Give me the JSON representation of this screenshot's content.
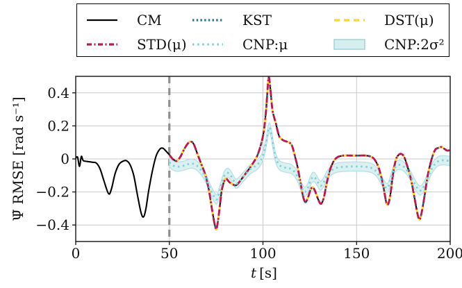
{
  "colors": {
    "cm": "#000000",
    "std": "#bf1550",
    "kst": "#27798f",
    "cnp": "#7fd2d8",
    "dst": "#ffd42e",
    "band_fill": "#d7eef0",
    "band_edge": "#b2e0e5",
    "vline": "#8f8f8f",
    "grid": "#c9c9c9",
    "axis": "#111111"
  },
  "axes": {
    "xlabel_var": "t",
    "xlabel_unit": "[s]",
    "ylabel": "Ψ̇ RMSE [rad s⁻¹]"
  },
  "legend": {
    "items": [
      {
        "label": "CM",
        "marker": "solid-line",
        "color": "#000000"
      },
      {
        "label": "KST",
        "marker": "dense-dots",
        "color": "#27798f"
      },
      {
        "label": "DST(μ)",
        "marker": "dashes",
        "color": "#ffd42e"
      },
      {
        "label": "STD(μ)",
        "marker": "dash-dot",
        "color": "#bf1550"
      },
      {
        "label": "CNP:μ",
        "marker": "dots",
        "color": "#7fd2d8"
      },
      {
        "label": "CNP:2σ²",
        "marker": "patch",
        "color": "#d7eef0",
        "border": "#9fd3d8"
      }
    ]
  },
  "chart_data": {
    "type": "line",
    "title": "",
    "xlabel": "t [s]",
    "ylabel": "Ψ̇ RMSE [rad s⁻¹]",
    "xlim": [
      0,
      200
    ],
    "ylim": [
      -0.5,
      0.5
    ],
    "xticks": [
      0,
      50,
      100,
      150,
      200
    ],
    "yticks": [
      0.4,
      0.2,
      0,
      -0.2,
      -0.4
    ],
    "xtick_labels": [
      "0",
      "50",
      "100",
      "150",
      "200"
    ],
    "ytick_labels": [
      "0.4",
      "0.2",
      "0",
      "−0.2",
      "−0.4"
    ],
    "grid": true,
    "legend_position": "above",
    "vline_x": 50,
    "series": [
      {
        "name": "CM",
        "style": "solid",
        "color": "#000000",
        "points": [
          [
            0,
            0.005
          ],
          [
            1,
            0.01
          ],
          [
            2,
            -0.045
          ],
          [
            3,
            0.015
          ],
          [
            4,
            -0.01
          ],
          [
            6,
            -0.015
          ],
          [
            9,
            -0.02
          ],
          [
            11,
            -0.025
          ],
          [
            13,
            -0.06
          ],
          [
            15,
            -0.13
          ],
          [
            17.5,
            -0.21
          ],
          [
            19,
            -0.185
          ],
          [
            21,
            -0.09
          ],
          [
            23,
            -0.035
          ],
          [
            25,
            -0.015
          ],
          [
            27,
            -0.01
          ],
          [
            29,
            -0.035
          ],
          [
            31,
            -0.1
          ],
          [
            33,
            -0.22
          ],
          [
            35,
            -0.33
          ],
          [
            36.3,
            -0.35
          ],
          [
            37.5,
            -0.3
          ],
          [
            39,
            -0.19
          ],
          [
            41,
            -0.07
          ],
          [
            43,
            0.02
          ],
          [
            45,
            0.06
          ],
          [
            46.5,
            0.065
          ],
          [
            48,
            0.05
          ],
          [
            50,
            0.025
          ],
          [
            52,
            -0.002
          ],
          [
            54,
            -0.012
          ],
          [
            56,
            0.015
          ],
          [
            58,
            0.06
          ],
          [
            60,
            0.095
          ],
          [
            61.5,
            0.105
          ],
          [
            63,
            0.09
          ],
          [
            65,
            0.03
          ],
          [
            67,
            -0.03
          ],
          [
            69,
            -0.09
          ],
          [
            71,
            -0.18
          ],
          [
            73,
            -0.32
          ],
          [
            74.5,
            -0.41
          ],
          [
            75.3,
            -0.42
          ],
          [
            76.5,
            -0.33
          ],
          [
            78,
            -0.19
          ],
          [
            79.5,
            -0.13
          ],
          [
            80.5,
            -0.12
          ],
          [
            82,
            -0.14
          ],
          [
            84,
            -0.155
          ],
          [
            85.5,
            -0.16
          ],
          [
            87,
            -0.145
          ],
          [
            89,
            -0.115
          ],
          [
            91,
            -0.085
          ],
          [
            93,
            -0.055
          ],
          [
            95,
            -0.02
          ],
          [
            97,
            0.02
          ],
          [
            99,
            0.09
          ],
          [
            100.5,
            0.17
          ],
          [
            101.7,
            0.3
          ],
          [
            102.8,
            0.47
          ],
          [
            103.3,
            0.49
          ],
          [
            104,
            0.42
          ],
          [
            105,
            0.3
          ],
          [
            106,
            0.25
          ],
          [
            107,
            0.21
          ],
          [
            108,
            0.16
          ],
          [
            109,
            0.13
          ],
          [
            110.5,
            0.115
          ],
          [
            112,
            0.107
          ],
          [
            114,
            0.1
          ],
          [
            115.5,
            0.08
          ],
          [
            117,
            0.02
          ],
          [
            118.5,
            -0.05
          ],
          [
            120,
            -0.14
          ],
          [
            121.5,
            -0.23
          ],
          [
            122.7,
            -0.262
          ],
          [
            124,
            -0.235
          ],
          [
            125.5,
            -0.185
          ],
          [
            126.7,
            -0.172
          ],
          [
            128,
            -0.2
          ],
          [
            129.5,
            -0.245
          ],
          [
            131,
            -0.272
          ],
          [
            132.5,
            -0.235
          ],
          [
            134,
            -0.15
          ],
          [
            136,
            -0.06
          ],
          [
            138,
            -0.01
          ],
          [
            140,
            0.012
          ],
          [
            143,
            0.02
          ],
          [
            147,
            0.02
          ],
          [
            151,
            0.02
          ],
          [
            155,
            0.02
          ],
          [
            158,
            0.012
          ],
          [
            160,
            -0.01
          ],
          [
            162,
            -0.06
          ],
          [
            164,
            -0.15
          ],
          [
            165.8,
            -0.26
          ],
          [
            166.8,
            -0.275
          ],
          [
            168,
            -0.22
          ],
          [
            169.5,
            -0.09
          ],
          [
            171,
            -0.005
          ],
          [
            172.5,
            0.025
          ],
          [
            174,
            0.03
          ],
          [
            175.5,
            0.01
          ],
          [
            177,
            -0.04
          ],
          [
            179,
            -0.12
          ],
          [
            181,
            -0.24
          ],
          [
            182.8,
            -0.345
          ],
          [
            183.8,
            -0.365
          ],
          [
            185,
            -0.31
          ],
          [
            186.5,
            -0.21
          ],
          [
            188,
            -0.1
          ],
          [
            190,
            -0.005
          ],
          [
            192,
            0.055
          ],
          [
            194,
            0.068
          ],
          [
            195.5,
            0.072
          ],
          [
            197,
            0.06
          ],
          [
            198.5,
            0.05
          ],
          [
            200,
            0.055
          ]
        ]
      },
      {
        "name": "STD(μ)",
        "style": "dashdot",
        "color": "#bf1550",
        "coincides_with": "CM",
        "from_t": 50
      },
      {
        "name": "KST",
        "style": "densely-dotted",
        "color": "#27798f",
        "coincides_with": "CM",
        "from_t": 50
      },
      {
        "name": "DST(μ)",
        "style": "dashed",
        "color": "#ffd42e",
        "coincides_with": "CM",
        "from_t": 50
      },
      {
        "name": "CNP:μ",
        "style": "dotted",
        "color": "#7fd2d8",
        "points": [
          [
            50,
            -0.02
          ],
          [
            52,
            -0.04
          ],
          [
            54,
            -0.047
          ],
          [
            56,
            -0.045
          ],
          [
            58,
            -0.04
          ],
          [
            60,
            -0.032
          ],
          [
            62,
            -0.028
          ],
          [
            64,
            -0.035
          ],
          [
            66,
            -0.055
          ],
          [
            68,
            -0.085
          ],
          [
            70,
            -0.13
          ],
          [
            72,
            -0.185
          ],
          [
            74,
            -0.23
          ],
          [
            75.3,
            -0.245
          ],
          [
            76.5,
            -0.21
          ],
          [
            78,
            -0.15
          ],
          [
            79.5,
            -0.1
          ],
          [
            81,
            -0.085
          ],
          [
            82.5,
            -0.095
          ],
          [
            84,
            -0.125
          ],
          [
            85.5,
            -0.15
          ],
          [
            87,
            -0.14
          ],
          [
            89,
            -0.115
          ],
          [
            91,
            -0.09
          ],
          [
            93,
            -0.065
          ],
          [
            95,
            -0.05
          ],
          [
            97,
            -0.035
          ],
          [
            99,
            -0.005
          ],
          [
            100.5,
            0.04
          ],
          [
            101.7,
            0.1
          ],
          [
            102.8,
            0.17
          ],
          [
            103.5,
            0.19
          ],
          [
            104.5,
            0.15
          ],
          [
            105.5,
            0.08
          ],
          [
            106.5,
            0.02
          ],
          [
            107.5,
            -0.015
          ],
          [
            109,
            -0.04
          ],
          [
            111,
            -0.05
          ],
          [
            113,
            -0.055
          ],
          [
            115,
            -0.06
          ],
          [
            117,
            -0.08
          ],
          [
            118.5,
            -0.11
          ],
          [
            120,
            -0.155
          ],
          [
            121.5,
            -0.19
          ],
          [
            122.5,
            -0.2
          ],
          [
            124,
            -0.175
          ],
          [
            125.5,
            -0.13
          ],
          [
            127,
            -0.108
          ],
          [
            128.5,
            -0.125
          ],
          [
            130,
            -0.155
          ],
          [
            131,
            -0.162
          ],
          [
            132.5,
            -0.14
          ],
          [
            134,
            -0.105
          ],
          [
            136,
            -0.075
          ],
          [
            138,
            -0.06
          ],
          [
            140,
            -0.052
          ],
          [
            143,
            -0.048
          ],
          [
            147,
            -0.046
          ],
          [
            151,
            -0.046
          ],
          [
            155,
            -0.048
          ],
          [
            158,
            -0.055
          ],
          [
            160,
            -0.07
          ],
          [
            162,
            -0.1
          ],
          [
            164,
            -0.145
          ],
          [
            165.8,
            -0.175
          ],
          [
            166.8,
            -0.172
          ],
          [
            168,
            -0.135
          ],
          [
            169.5,
            -0.075
          ],
          [
            171,
            -0.045
          ],
          [
            172.5,
            -0.036
          ],
          [
            174,
            -0.038
          ],
          [
            175.5,
            -0.05
          ],
          [
            177,
            -0.07
          ],
          [
            179,
            -0.105
          ],
          [
            181,
            -0.15
          ],
          [
            183,
            -0.185
          ],
          [
            184.5,
            -0.19
          ],
          [
            186,
            -0.165
          ],
          [
            188,
            -0.115
          ],
          [
            190,
            -0.065
          ],
          [
            192,
            -0.03
          ],
          [
            194,
            -0.012
          ],
          [
            196,
            -0.008
          ],
          [
            198,
            -0.01
          ],
          [
            200,
            -0.012
          ]
        ]
      }
    ],
    "band": {
      "name": "CNP:2σ²",
      "around": "CNP:μ",
      "halfwidth": 0.028,
      "fill": "#d7eef0",
      "edge": "#b2e0e5"
    }
  }
}
